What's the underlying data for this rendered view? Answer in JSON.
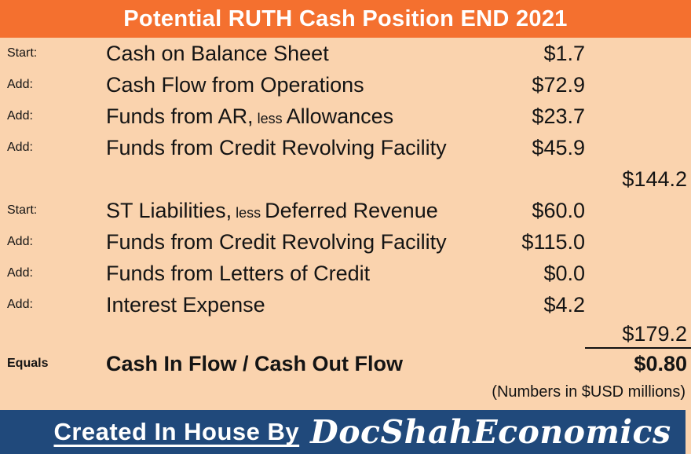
{
  "title": "Potential RUTH Cash Position END 2021",
  "sections": [
    {
      "rows": [
        {
          "label": "Start:",
          "item_pre": "Cash on Balance Sheet",
          "value": "$1.7"
        },
        {
          "label": "Add:",
          "item_pre": "Cash Flow from Operations",
          "value": "$72.9"
        },
        {
          "label": "Add:",
          "item_pre": "Funds from AR,",
          "item_small": " less ",
          "item_post": "Allowances",
          "value": "$23.7"
        },
        {
          "label": "Add:",
          "item_pre": "Funds from Credit Revolving Facility",
          "value": "$45.9"
        }
      ],
      "subtotal": "$144.2"
    },
    {
      "rows": [
        {
          "label": "Start:",
          "item_pre": "ST Liabilities,",
          "item_small": " less ",
          "item_post": "Deferred Revenue",
          "value": "$60.0"
        },
        {
          "label": "Add:",
          "item_pre": "Funds from Credit Revolving Facility",
          "value": "$115.0"
        },
        {
          "label": "Add:",
          "item_pre": "Funds from Letters of Credit",
          "value": "$0.0"
        },
        {
          "label": "Add:",
          "item_pre": "Interest Expense",
          "value": "$4.2"
        }
      ],
      "subtotal": "$179.2"
    }
  ],
  "result": {
    "label": "Equals",
    "item": "Cash In Flow / Cash Out Flow",
    "value": "$0.80"
  },
  "note": "(Numbers in $USD millions)",
  "footer": {
    "created_text": "Created In House By",
    "brand": "DocShahEconomics"
  },
  "colors": {
    "header_orange": "#F4702F",
    "background_peach": "#FAD3AE",
    "footer_blue": "#20497B",
    "text_black": "#141414",
    "title_white": "#FFFFFF"
  }
}
